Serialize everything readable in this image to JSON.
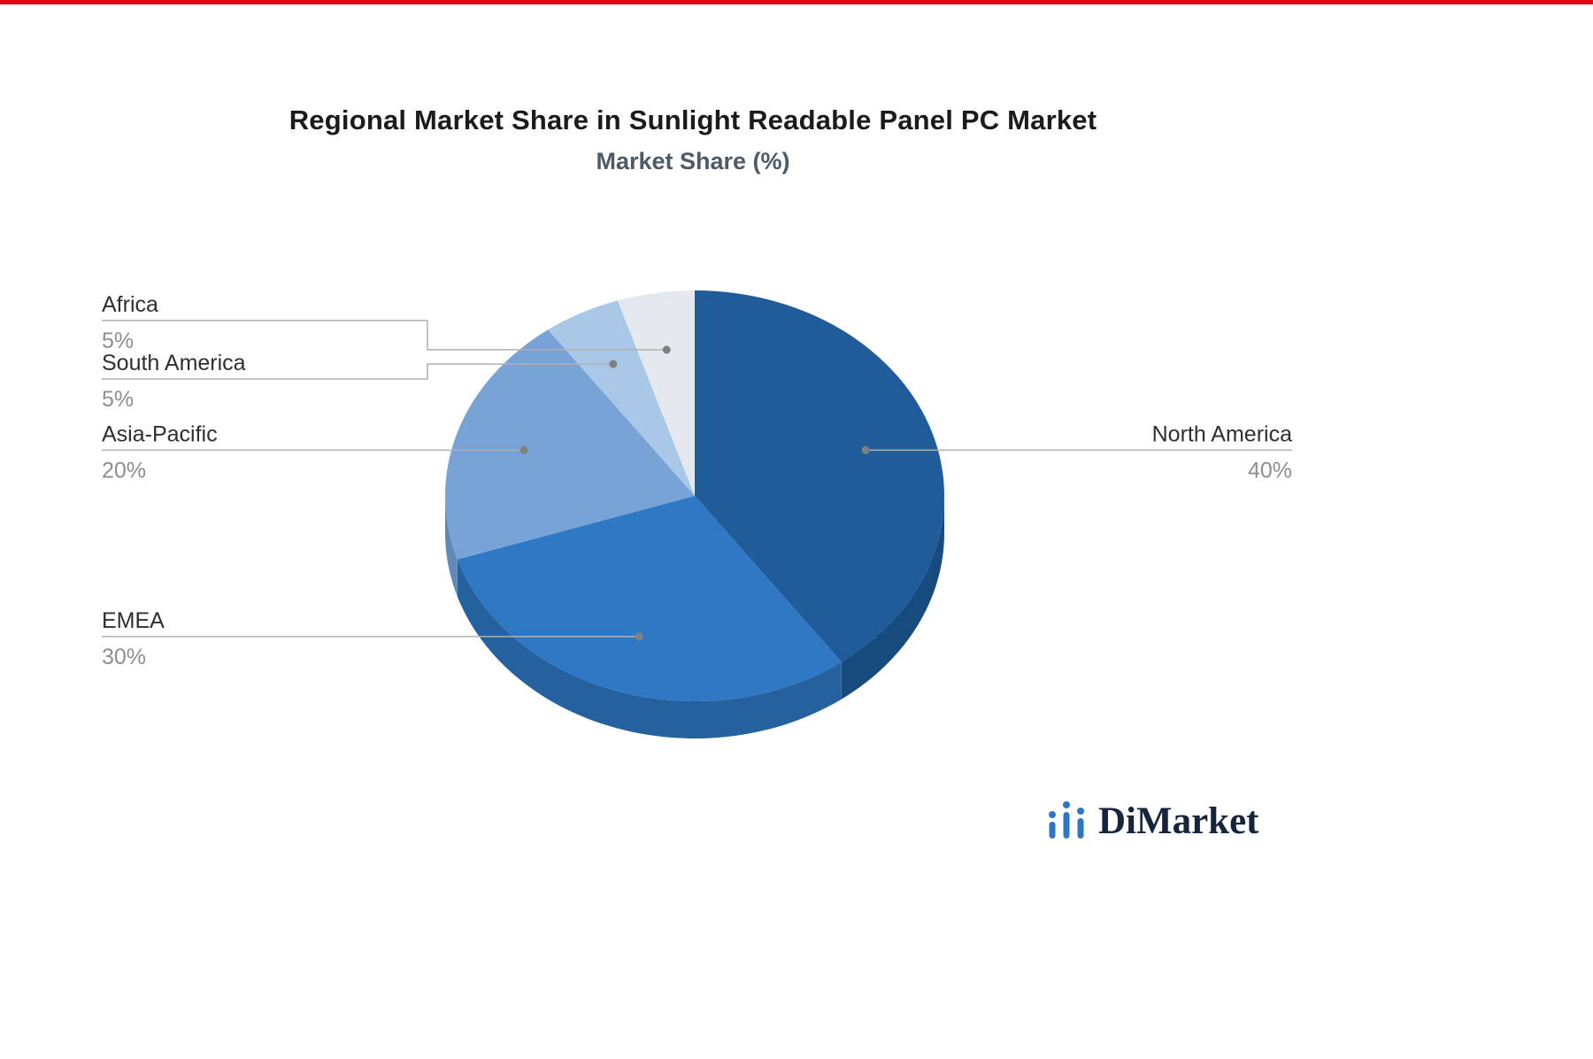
{
  "page": {
    "top_bar_color": "#e30613",
    "background_color": "#ffffff"
  },
  "chart_data": {
    "type": "pie",
    "style": "3d",
    "title": "Regional Market Share in Sunlight Readable Panel PC Market",
    "subtitle": "Market Share (%)",
    "labels": [
      "North America",
      "EMEA",
      "Asia-Pacific",
      "South America",
      "Africa"
    ],
    "values": [
      40,
      30,
      20,
      5,
      5
    ],
    "value_labels": [
      "40%",
      "30%",
      "20%",
      "5%",
      "5%"
    ],
    "colors": [
      "#1f5c99",
      "#2f78c4",
      "#77a3d6",
      "#a9c8e8",
      "#e4e9f0"
    ],
    "side_colors": [
      "#174a7d",
      "#26619f",
      "#6089b8",
      "#8fb3d8",
      "#c9d2de"
    ],
    "start_angle_deg": 0,
    "direction": "clockwise",
    "legend": "none",
    "leader_line_color": "#b0b0b0",
    "leader_dot_color": "#808080",
    "label_text_color": "#2f2f2f",
    "value_text_color": "#8e8e8e"
  },
  "branding": {
    "logo_text": "DiMarket",
    "logo_color": "#16243d",
    "icon_color": "#2e75c8",
    "icon": "bar-chart-icon"
  }
}
